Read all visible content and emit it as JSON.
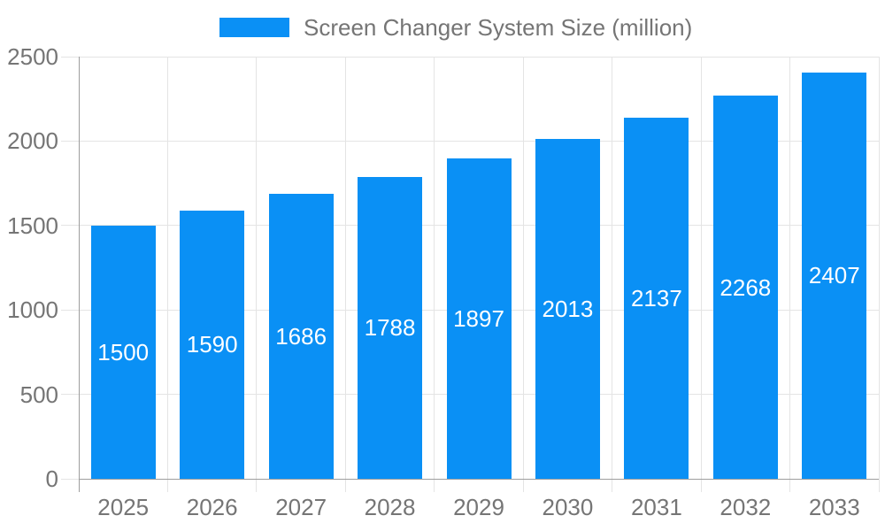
{
  "legend": {
    "label": "Screen Changer System Size (million)"
  },
  "colors": {
    "bar": "#0A90F5",
    "bar_label": "#ffffff",
    "axis_text": "#757575",
    "axis_line": "#9e9e9e",
    "grid_line": "#e4e4e4"
  },
  "chart_data": {
    "type": "bar",
    "title": "",
    "xlabel": "",
    "ylabel": "",
    "categories": [
      "2025",
      "2026",
      "2027",
      "2028",
      "2029",
      "2030",
      "2031",
      "2032",
      "2033"
    ],
    "values": [
      1500,
      1590,
      1686,
      1788,
      1897,
      2013,
      2137,
      2268,
      2407
    ],
    "series_name": "Screen Changer System Size (million)",
    "ylim": [
      0,
      2500
    ],
    "yticks": [
      0,
      500,
      1000,
      1500,
      2000,
      2500
    ],
    "grid": true,
    "legend_position": "top",
    "bar_labels": "inside-center"
  }
}
